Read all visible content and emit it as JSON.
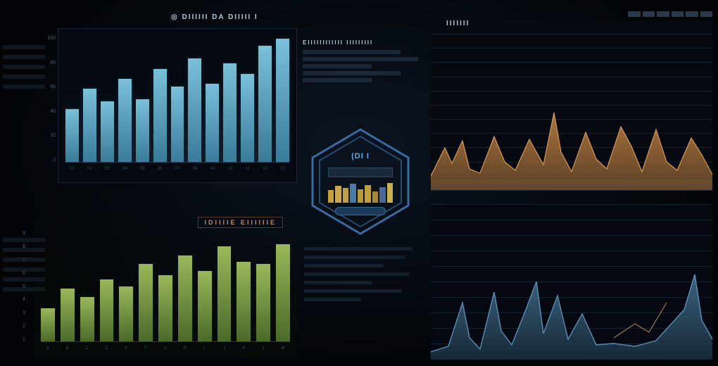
{
  "panel1": {
    "title": "◎ DIIIIII DA DIIIII I",
    "type": "bar",
    "values": [
      42,
      58,
      48,
      66,
      50,
      74,
      60,
      82,
      62,
      78,
      70,
      92,
      98
    ],
    "xlabels": [
      "01",
      "02",
      "03",
      "04",
      "05",
      "06",
      "07",
      "08",
      "09",
      "10",
      "11",
      "12",
      "13"
    ],
    "yticks": [
      "100",
      "80",
      "60",
      "40",
      "20",
      "0"
    ],
    "ylim": [
      0,
      100
    ],
    "bar_gradient_top": "#7ac0da",
    "bar_gradient_bottom": "#3a7a9a",
    "background": "#050a12",
    "border_color": "#1a2838"
  },
  "panel2": {
    "title": "IDIIIIE EIIIIIIE",
    "title_color": "#c08860",
    "type": "bar",
    "values": [
      30,
      48,
      40,
      56,
      50,
      70,
      60,
      78,
      64,
      86,
      72,
      70,
      88
    ],
    "xlabels": [
      "A",
      "B",
      "C",
      "D",
      "E",
      "F",
      "G",
      "H",
      "I",
      "J",
      "K",
      "L",
      "M"
    ],
    "yticks": [
      "9",
      "8",
      "7",
      "6",
      "5",
      "4",
      "3",
      "2",
      "1"
    ],
    "ylim": [
      0,
      100
    ],
    "bar_gradient_top": "#9ab85a",
    "bar_gradient_bottom": "#4a6a2a"
  },
  "panel3": {
    "title": "EIIIIIIIIIIII IIIIIIIII",
    "subtitle_lines": 5
  },
  "hex": {
    "readout": "(DI I",
    "outline_color": "#3a6aa0",
    "outline2_color": "#2a4a70",
    "mini_bars": [
      {
        "h": 60,
        "c": "#c8a040"
      },
      {
        "h": 80,
        "c": "#c8a850"
      },
      {
        "h": 70,
        "c": "#c0a048"
      },
      {
        "h": 90,
        "c": "#4a7aa8"
      },
      {
        "h": 65,
        "c": "#b89838"
      },
      {
        "h": 85,
        "c": "#c0a040"
      },
      {
        "h": 55,
        "c": "#a88830"
      },
      {
        "h": 75,
        "c": "#4a6a98"
      },
      {
        "h": 95,
        "c": "#c8b050"
      }
    ]
  },
  "panel6": {
    "title": "IIIIIII",
    "type": "area-spikes",
    "grid_lines": 12,
    "grid_color": "#182430",
    "line_color": "#d89858",
    "fill_top": "#c88848",
    "fill_bottom": "#6a4828",
    "base_color": "#2a5a7a",
    "points": [
      [
        0,
        20
      ],
      [
        20,
        60
      ],
      [
        30,
        38
      ],
      [
        45,
        70
      ],
      [
        55,
        30
      ],
      [
        70,
        24
      ],
      [
        90,
        76
      ],
      [
        105,
        40
      ],
      [
        120,
        28
      ],
      [
        140,
        72
      ],
      [
        160,
        36
      ],
      [
        175,
        110
      ],
      [
        185,
        54
      ],
      [
        200,
        26
      ],
      [
        220,
        82
      ],
      [
        235,
        44
      ],
      [
        250,
        30
      ],
      [
        270,
        90
      ],
      [
        285,
        62
      ],
      [
        300,
        26
      ],
      [
        320,
        86
      ],
      [
        335,
        40
      ],
      [
        350,
        28
      ],
      [
        370,
        74
      ],
      [
        385,
        50
      ],
      [
        400,
        22
      ]
    ]
  },
  "panel7": {
    "type": "area-spikes",
    "grid_lines": 11,
    "grid_color": "#16222e",
    "line_color": "#5a90b8",
    "fill_top": "#4a7a9a",
    "fill_bottom": "#1a3040",
    "accent_color": "#b08858",
    "points": [
      [
        0,
        10
      ],
      [
        25,
        18
      ],
      [
        45,
        80
      ],
      [
        55,
        30
      ],
      [
        70,
        14
      ],
      [
        90,
        95
      ],
      [
        100,
        40
      ],
      [
        115,
        20
      ],
      [
        135,
        70
      ],
      [
        150,
        110
      ],
      [
        160,
        36
      ],
      [
        180,
        90
      ],
      [
        195,
        28
      ],
      [
        215,
        64
      ],
      [
        235,
        20
      ],
      [
        260,
        22
      ],
      [
        290,
        18
      ],
      [
        320,
        26
      ],
      [
        360,
        70
      ],
      [
        375,
        120
      ],
      [
        385,
        55
      ],
      [
        400,
        28
      ]
    ],
    "accent_points": [
      [
        260,
        30
      ],
      [
        290,
        50
      ],
      [
        310,
        38
      ],
      [
        335,
        80
      ]
    ]
  },
  "colors": {
    "bg_outer": "#030508",
    "bg_inner": "#0a1420",
    "text_muted": "#4a5a6a"
  }
}
